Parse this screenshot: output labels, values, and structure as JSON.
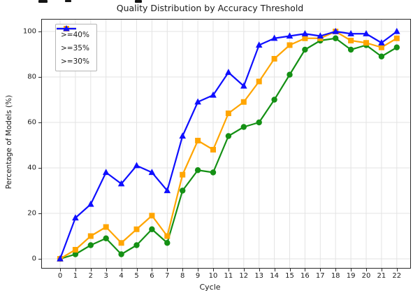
{
  "figure": {
    "background": "#ffffff",
    "axes_edge_color": "#2a2a2a",
    "grid_color": "#e3e3e3"
  },
  "chart_data": {
    "type": "line",
    "title": "Quality Distribution by Accuracy Threshold",
    "xlabel": "Cycle",
    "ylabel": "Percentage of Models (%)",
    "x": [
      0,
      1,
      2,
      3,
      4,
      5,
      6,
      7,
      8,
      9,
      10,
      11,
      12,
      13,
      14,
      15,
      16,
      17,
      18,
      19,
      20,
      21,
      22
    ],
    "x_tick_labels": [
      "0",
      "1",
      "2",
      "3",
      "4",
      "5",
      "6",
      "7",
      "8",
      "9",
      "10",
      "11",
      "12",
      "13",
      "14",
      "15",
      "16",
      "17",
      "18",
      "19",
      "20",
      "21",
      "22"
    ],
    "y_ticks": [
      0,
      20,
      40,
      60,
      80,
      100
    ],
    "ylim": [
      -4.5,
      105.5
    ],
    "grid": true,
    "legend_position": "upper left",
    "series": [
      {
        "name": ">=40%",
        "color": "#149014",
        "marker": "circle",
        "values": [
          0,
          2,
          6,
          9,
          2,
          6,
          13,
          7,
          30,
          39,
          38,
          54,
          58,
          60,
          70,
          81,
          92,
          96,
          97,
          92,
          94,
          89,
          93
        ]
      },
      {
        "name": ">=35%",
        "color": "#ffa500",
        "marker": "square",
        "values": [
          0,
          4,
          10,
          14,
          7,
          13,
          19,
          10,
          37,
          52,
          48,
          64,
          69,
          78,
          88,
          94,
          97,
          97,
          100,
          96,
          95,
          93,
          97
        ]
      },
      {
        "name": ">=30%",
        "color": "#0f0fff",
        "marker": "triangle",
        "values": [
          0,
          18,
          24,
          38,
          33,
          41,
          38,
          30,
          54,
          69,
          72,
          82,
          76,
          94,
          97,
          98,
          99,
          98,
          100,
          99,
          99,
          95,
          100
        ]
      }
    ]
  }
}
